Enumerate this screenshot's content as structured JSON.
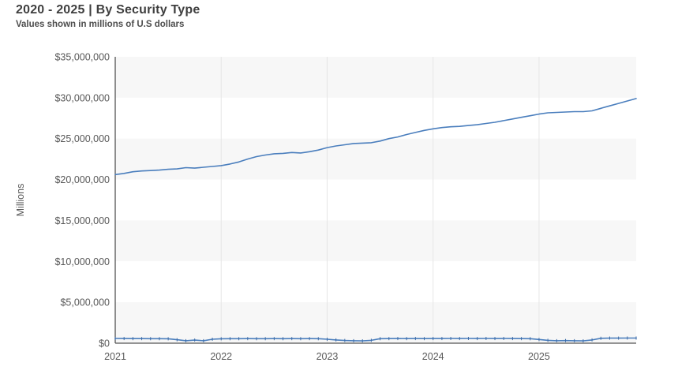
{
  "header": {
    "title": "2020 - 2025 | By Security Type",
    "subtitle": "Values shown in millions of U.S dollars"
  },
  "chart_data": {
    "type": "line",
    "title": "2020 - 2025 | By Security Type",
    "subtitle": "Values shown in millions of U.S dollars",
    "xlabel": "",
    "ylabel": "Millions",
    "ylim": [
      0,
      35000000
    ],
    "y_tick_labels": [
      "$35,000,000",
      "$30,000,000",
      "$25,000,000",
      "$20,000,000",
      "$15,000,000",
      "$10,000,000",
      "$5,000,000",
      "$0"
    ],
    "x_tick_labels": [
      "2021",
      "2022",
      "2023",
      "2024",
      "2025"
    ],
    "x_interval": "monthly",
    "x_start": "2021-01",
    "x_end": "2025-12",
    "legend": "none",
    "grid": {
      "alternating_bands": true,
      "vertical_year_gridlines": true
    },
    "series": [
      {
        "name": "series-1",
        "color": "#4a7ebd",
        "markers": "none",
        "values": [
          20600000,
          20750000,
          20950000,
          21050000,
          21100000,
          21150000,
          21250000,
          21300000,
          21450000,
          21400000,
          21500000,
          21600000,
          21700000,
          21900000,
          22150000,
          22500000,
          22800000,
          23000000,
          23150000,
          23200000,
          23300000,
          23250000,
          23400000,
          23600000,
          23900000,
          24100000,
          24250000,
          24400000,
          24450000,
          24500000,
          24700000,
          25000000,
          25200000,
          25500000,
          25750000,
          26000000,
          26200000,
          26350000,
          26450000,
          26500000,
          26600000,
          26700000,
          26850000,
          27000000,
          27200000,
          27400000,
          27600000,
          27800000,
          28000000,
          28150000,
          28200000,
          28250000,
          28300000,
          28300000,
          28400000,
          28700000,
          29000000,
          29300000,
          29600000,
          29900000
        ]
      },
      {
        "name": "series-2",
        "color": "#4a7ebd",
        "markers": "tick",
        "values": [
          580000,
          570000,
          560000,
          560000,
          550000,
          550000,
          540000,
          420000,
          300000,
          380000,
          300000,
          480000,
          540000,
          550000,
          550000,
          560000,
          550000,
          550000,
          560000,
          550000,
          560000,
          550000,
          560000,
          550000,
          480000,
          400000,
          330000,
          300000,
          280000,
          350000,
          550000,
          560000,
          570000,
          560000,
          570000,
          560000,
          570000,
          570000,
          580000,
          570000,
          580000,
          570000,
          580000,
          570000,
          580000,
          570000,
          560000,
          550000,
          450000,
          350000,
          300000,
          320000,
          300000,
          280000,
          400000,
          600000,
          620000,
          620000,
          630000,
          630000
        ]
      }
    ]
  },
  "colors": {
    "line": "#4a7ebd",
    "marker_tick": "#3d6ba6",
    "band_gray": "#f7f7f7",
    "band_white": "#ffffff",
    "vertical_gridline": "#e6e6e6",
    "axis_spine": "#545454",
    "title_text": "#3f3f3f",
    "label_text": "#595959"
  }
}
